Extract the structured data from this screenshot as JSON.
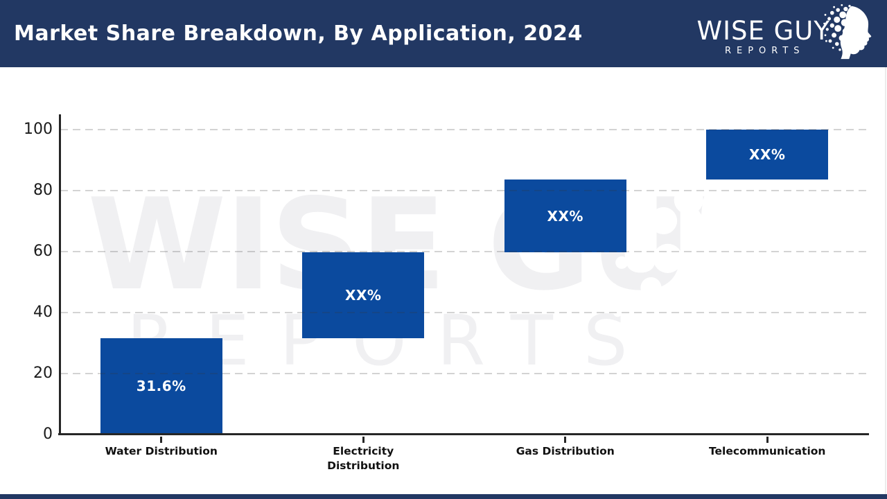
{
  "header": {
    "title": "Market Share Breakdown, By Application, 2024",
    "logo": {
      "name": "WISE GUY",
      "subtitle": "REPORTS"
    }
  },
  "watermark": {
    "name": "WISE GUY",
    "subtitle": "REPORTS"
  },
  "chart_data": {
    "type": "bar",
    "subtype": "waterfall-segments",
    "title": "Market Share Breakdown, By Application, 2024",
    "categories": [
      "Water Distribution",
      "Electricity Distribution",
      "Gas Distribution",
      "Telecommunication"
    ],
    "bars": [
      {
        "category": "Water Distribution",
        "label": "31.6%",
        "start": 0,
        "end": 31.6
      },
      {
        "category": "Electricity Distribution",
        "label": "XX%",
        "start": 31.6,
        "end": 59.8
      },
      {
        "category": "Gas Distribution",
        "label": "XX%",
        "start": 59.8,
        "end": 83.6
      },
      {
        "category": "Telecommunication",
        "label": "XX%",
        "start": 83.6,
        "end": 100
      }
    ],
    "yticks": [
      0,
      20,
      40,
      60,
      80,
      100
    ],
    "ylim": [
      0,
      104
    ],
    "grid": true,
    "gridline_style": "dashed",
    "legend_position": "none",
    "xlabel": "",
    "ylabel": ""
  },
  "colors": {
    "header_bg": "#223863",
    "bar": "#0b4a9e",
    "grid_dash": "rgba(55,55,55,0.22)",
    "axis": "#262626",
    "watermark": "#f0f0f2"
  }
}
